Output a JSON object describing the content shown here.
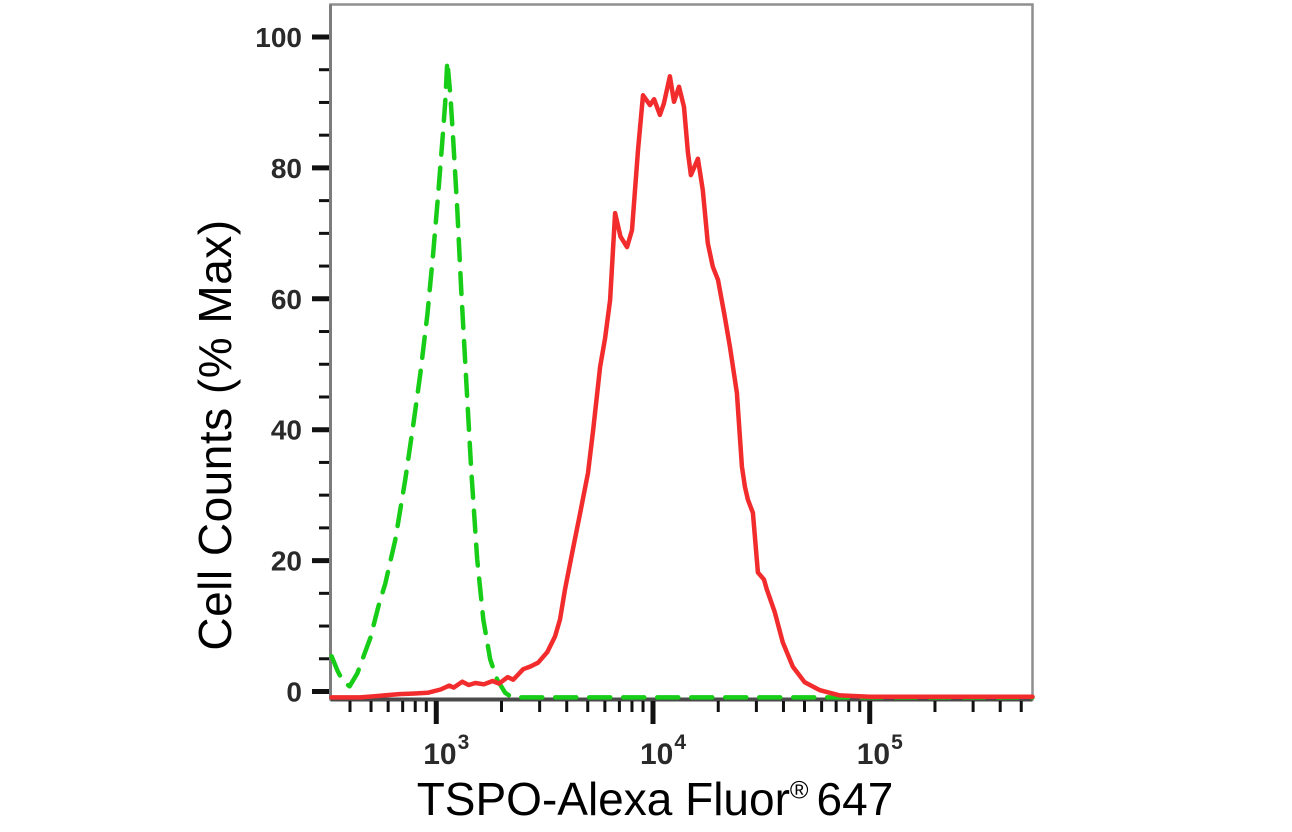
{
  "figure": {
    "y_axis_title": "Cell Counts (% Max)",
    "x_axis_title_main": "TSPO-Alexa Fluor",
    "x_axis_title_sup": "®",
    "x_axis_title_suffix": "647"
  },
  "chart_data": {
    "type": "line",
    "subtype": "flow_cytometry_histogram_overlay",
    "title": "",
    "xlabel": "TSPO-Alexa Fluor® 647",
    "ylabel": "Cell Counts (% Max)",
    "grid": false,
    "legend": "none",
    "x_axis": {
      "scale": "log10",
      "range_log10": [
        2.512,
        5.751
      ],
      "major_ticks_log10": [
        3,
        4,
        5
      ],
      "major_tick_labels": [
        {
          "base": "10",
          "exponent": "3"
        },
        {
          "base": "10",
          "exponent": "4"
        },
        {
          "base": "10",
          "exponent": "5"
        }
      ],
      "minor_ticks_log10": [
        2.602,
        2.699,
        2.778,
        2.845,
        2.903,
        2.954,
        3.301,
        3.477,
        3.602,
        3.699,
        3.778,
        3.845,
        3.903,
        3.954,
        4.301,
        4.477,
        4.602,
        4.699,
        4.778,
        4.845,
        4.903,
        4.954,
        5.301,
        5.477,
        5.602,
        5.699
      ]
    },
    "y_axis": {
      "range": [
        0,
        100
      ],
      "major_ticks": [
        0,
        20,
        40,
        60,
        80,
        100
      ],
      "minor_ticks": [
        5,
        10,
        15,
        25,
        30,
        35,
        45,
        50,
        55,
        65,
        70,
        75,
        85,
        90,
        95
      ]
    },
    "colors": {
      "green": "#17cd17",
      "red": "#f22c2c",
      "frame": "#8f8f8f",
      "bottom_axis": "#4a4a4a",
      "left_axis": "#7d7d7d",
      "tick": "#111111",
      "tick_label": "#2a2a2a"
    },
    "series": [
      {
        "name": "green-dashed-histogram",
        "style": "dashed",
        "color": "#17cd17",
        "peak": {
          "log10_x": 3.05,
          "pct_max": 96
        },
        "points_log10x_pct": [
          [
            2.517,
            5.4
          ],
          [
            2.545,
            3.1
          ],
          [
            2.571,
            1.5
          ],
          [
            2.6,
            0.8
          ],
          [
            2.636,
            2.8
          ],
          [
            2.659,
            4.9
          ],
          [
            2.696,
            8.2
          ],
          [
            2.733,
            13.0
          ],
          [
            2.765,
            16.5
          ],
          [
            2.811,
            23.2
          ],
          [
            2.857,
            32.4
          ],
          [
            2.894,
            40.8
          ],
          [
            2.926,
            48.4
          ],
          [
            2.959,
            57.6
          ],
          [
            2.986,
            67.0
          ],
          [
            3.009,
            76.0
          ],
          [
            3.028,
            84.0
          ],
          [
            3.041,
            90.0
          ],
          [
            3.051,
            96.3
          ],
          [
            3.065,
            91.1
          ],
          [
            3.078,
            84.3
          ],
          [
            3.097,
            73.6
          ],
          [
            3.115,
            61.4
          ],
          [
            3.138,
            47.6
          ],
          [
            3.161,
            33.9
          ],
          [
            3.189,
            20.2
          ],
          [
            3.217,
            11.0
          ],
          [
            3.249,
            4.9
          ],
          [
            3.281,
            1.8
          ],
          [
            3.318,
            -0.2
          ],
          [
            3.35,
            -0.9
          ],
          [
            5.751,
            -0.9
          ]
        ]
      },
      {
        "name": "red-solid-histogram",
        "style": "solid",
        "color": "#f22c2c",
        "peak": {
          "log10_x": 4.08,
          "pct_max": 94
        },
        "points_log10x_pct": [
          [
            2.517,
            -0.9
          ],
          [
            2.65,
            -0.9
          ],
          [
            2.76,
            -0.6
          ],
          [
            2.83,
            -0.4
          ],
          [
            2.9,
            -0.3
          ],
          [
            2.96,
            -0.2
          ],
          [
            3.02,
            0.3
          ],
          [
            3.06,
            0.9
          ],
          [
            3.08,
            0.6
          ],
          [
            3.12,
            1.5
          ],
          [
            3.15,
            1.0
          ],
          [
            3.18,
            1.3
          ],
          [
            3.22,
            1.1
          ],
          [
            3.26,
            1.6
          ],
          [
            3.29,
            1.2
          ],
          [
            3.33,
            2.2
          ],
          [
            3.355,
            1.8
          ],
          [
            3.378,
            2.6
          ],
          [
            3.401,
            3.4
          ],
          [
            3.433,
            3.8
          ],
          [
            3.47,
            4.4
          ],
          [
            3.512,
            6.0
          ],
          [
            3.548,
            8.4
          ],
          [
            3.571,
            11.0
          ],
          [
            3.594,
            15.6
          ],
          [
            3.627,
            21.2
          ],
          [
            3.664,
            27.3
          ],
          [
            3.7,
            33.4
          ],
          [
            3.724,
            40.0
          ],
          [
            3.756,
            49.6
          ],
          [
            3.779,
            54.0
          ],
          [
            3.802,
            59.8
          ],
          [
            3.825,
            73.1
          ],
          [
            3.85,
            69.5
          ],
          [
            3.88,
            67.9
          ],
          [
            3.903,
            70.5
          ],
          [
            3.931,
            82.7
          ],
          [
            3.954,
            91.1
          ],
          [
            3.986,
            89.6
          ],
          [
            4.005,
            90.5
          ],
          [
            4.032,
            88.1
          ],
          [
            4.05,
            89.8
          ],
          [
            4.078,
            94.0
          ],
          [
            4.097,
            90.1
          ],
          [
            4.12,
            92.4
          ],
          [
            4.143,
            89.3
          ],
          [
            4.161,
            82.4
          ],
          [
            4.175,
            78.9
          ],
          [
            4.207,
            81.4
          ],
          [
            4.23,
            76.6
          ],
          [
            4.253,
            68.5
          ],
          [
            4.276,
            64.9
          ],
          [
            4.3,
            62.9
          ],
          [
            4.33,
            57.5
          ],
          [
            4.355,
            52.7
          ],
          [
            4.387,
            45.6
          ],
          [
            4.41,
            34.4
          ],
          [
            4.424,
            31.3
          ],
          [
            4.438,
            29.3
          ],
          [
            4.461,
            27.3
          ],
          [
            4.484,
            18.2
          ],
          [
            4.512,
            17.1
          ],
          [
            4.525,
            15.6
          ],
          [
            4.562,
            12.1
          ],
          [
            4.599,
            7.5
          ],
          [
            4.645,
            3.8
          ],
          [
            4.7,
            1.4
          ],
          [
            4.77,
            0.2
          ],
          [
            4.862,
            -0.6
          ],
          [
            5.0,
            -0.8
          ],
          [
            5.751,
            -0.8
          ]
        ]
      }
    ]
  }
}
